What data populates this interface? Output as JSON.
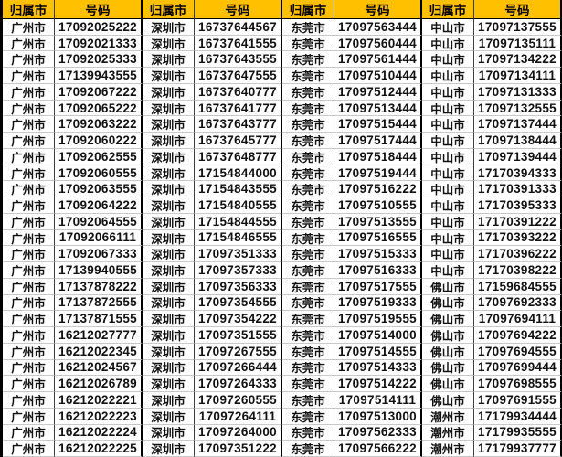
{
  "table": {
    "header_labels": [
      "归属市",
      "号码",
      "归属市",
      "号码",
      "归属市",
      "号码",
      "归属市",
      "号码"
    ],
    "colors": {
      "header_bg": "#FFC000",
      "header_text": "#000000",
      "grid_line": "#C9C9C9",
      "group_border": "#000000",
      "cell_text": "#111111"
    },
    "rows": [
      [
        "广州市",
        "17092025222",
        "深圳市",
        "16737644567",
        "东莞市",
        "17097563444",
        "中山市",
        "17097137555"
      ],
      [
        "广州市",
        "17092021333",
        "深圳市",
        "16737641555",
        "东莞市",
        "17097560444",
        "中山市",
        "17097135111"
      ],
      [
        "广州市",
        "17092025333",
        "深圳市",
        "16737643555",
        "东莞市",
        "17097561444",
        "中山市",
        "17097134222"
      ],
      [
        "广州市",
        "17139943555",
        "深圳市",
        "16737647555",
        "东莞市",
        "17097510444",
        "中山市",
        "17097134111"
      ],
      [
        "广州市",
        "17092067222",
        "深圳市",
        "16737640777",
        "东莞市",
        "17097512444",
        "中山市",
        "17097131333"
      ],
      [
        "广州市",
        "17092065222",
        "深圳市",
        "16737641777",
        "东莞市",
        "17097513444",
        "中山市",
        "17097132555"
      ],
      [
        "广州市",
        "17092063222",
        "深圳市",
        "16737643777",
        "东莞市",
        "17097515444",
        "中山市",
        "17097137444"
      ],
      [
        "广州市",
        "17092060222",
        "深圳市",
        "16737645777",
        "东莞市",
        "17097517444",
        "中山市",
        "17097138444"
      ],
      [
        "广州市",
        "17092062555",
        "深圳市",
        "16737648777",
        "东莞市",
        "17097518444",
        "中山市",
        "17097139444"
      ],
      [
        "广州市",
        "17092060555",
        "深圳市",
        "17154844000",
        "东莞市",
        "17097519444",
        "中山市",
        "17170394333"
      ],
      [
        "广州市",
        "17092063555",
        "深圳市",
        "17154843555",
        "东莞市",
        "17097516222",
        "中山市",
        "17170391333"
      ],
      [
        "广州市",
        "17092064222",
        "深圳市",
        "17154840555",
        "东莞市",
        "17097510555",
        "中山市",
        "17170395333"
      ],
      [
        "广州市",
        "17092064555",
        "深圳市",
        "17154844555",
        "东莞市",
        "17097513555",
        "中山市",
        "17170391222"
      ],
      [
        "广州市",
        "17092066111",
        "深圳市",
        "17154846555",
        "东莞市",
        "17097516555",
        "中山市",
        "17170393222"
      ],
      [
        "广州市",
        "17092067333",
        "深圳市",
        "17097351333",
        "东莞市",
        "17097515333",
        "中山市",
        "17170396222"
      ],
      [
        "广州市",
        "17139940555",
        "深圳市",
        "17097357333",
        "东莞市",
        "17097516333",
        "中山市",
        "17170398222"
      ],
      [
        "广州市",
        "17137878222",
        "深圳市",
        "17097356333",
        "东莞市",
        "17097517555",
        "佛山市",
        "17159684555"
      ],
      [
        "广州市",
        "17137872555",
        "深圳市",
        "17097354555",
        "东莞市",
        "17097519333",
        "佛山市",
        "17097692333"
      ],
      [
        "广州市",
        "17137871555",
        "深圳市",
        "17097354222",
        "东莞市",
        "17097519555",
        "佛山市",
        "17097694111"
      ],
      [
        "广州市",
        "16212027777",
        "深圳市",
        "17097351555",
        "东莞市",
        "17097514000",
        "佛山市",
        "17097694222"
      ],
      [
        "广州市",
        "16212022345",
        "深圳市",
        "17097267555",
        "东莞市",
        "17097514555",
        "佛山市",
        "17097694555"
      ],
      [
        "广州市",
        "16212024567",
        "深圳市",
        "17097266444",
        "东莞市",
        "17097514333",
        "佛山市",
        "17097699444"
      ],
      [
        "广州市",
        "16212026789",
        "深圳市",
        "17097264333",
        "东莞市",
        "17097514222",
        "佛山市",
        "17097698555"
      ],
      [
        "广州市",
        "16212022221",
        "深圳市",
        "17097260555",
        "东莞市",
        "17097514111",
        "佛山市",
        "17097691555"
      ],
      [
        "广州市",
        "16212022223",
        "深圳市",
        "17097264111",
        "东莞市",
        "17097513000",
        "潮州市",
        "17179934444"
      ],
      [
        "广州市",
        "16212022224",
        "深圳市",
        "17097264000",
        "东莞市",
        "17097562333",
        "潮州市",
        "17179935555"
      ],
      [
        "广州市",
        "16212022225",
        "深圳市",
        "17097351222",
        "东莞市",
        "17097566222",
        "潮州市",
        "17179937777"
      ]
    ]
  }
}
